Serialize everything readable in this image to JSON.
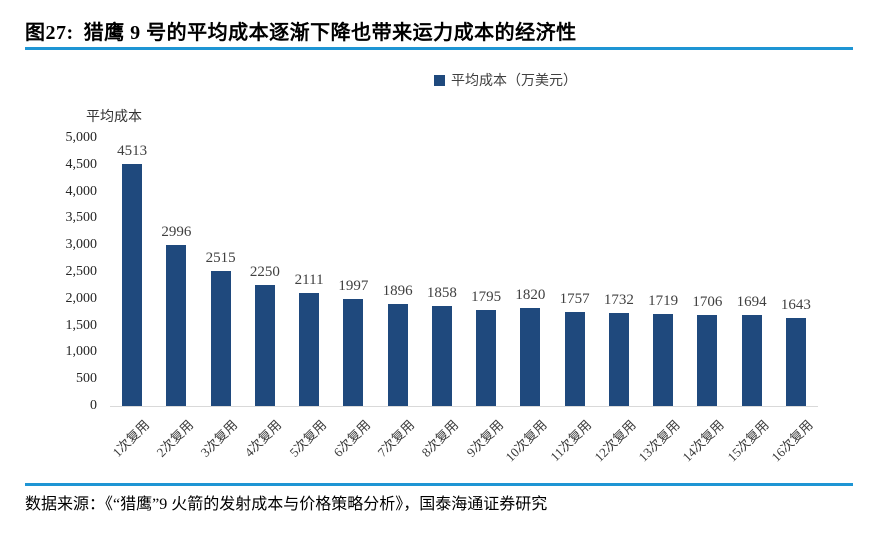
{
  "header": {
    "prefix": "图27:",
    "title": "猎鹰 9 号的平均成本逐渐下降也带来运力成本的经济性"
  },
  "chart_data": {
    "type": "bar",
    "title": "猎鹰 9 号的平均成本逐渐下降也带来运力成本的经济性",
    "legend": "平均成本（万美元）",
    "ylabel": "平均成本",
    "xlabel": "",
    "categories": [
      "1次复用",
      "2次复用",
      "3次复用",
      "4次复用",
      "5次复用",
      "6次复用",
      "7次复用",
      "8次复用",
      "9次复用",
      "10次复用",
      "11次复用",
      "12次复用",
      "13次复用",
      "14次复用",
      "15次复用",
      "16次复用"
    ],
    "values": [
      4513,
      2996,
      2515,
      2250,
      2111,
      1997,
      1896,
      1858,
      1795,
      1820,
      1757,
      1732,
      1719,
      1706,
      1694,
      1643
    ],
    "ylim": [
      0,
      5000
    ],
    "yticks": [
      "5,000",
      "4,500",
      "4,000",
      "3,500",
      "3,000",
      "2,500",
      "2,000",
      "1,500",
      "1,000",
      "500",
      "0"
    ],
    "grid": "off",
    "legend_position": "top-center"
  },
  "footer": {
    "source": "数据来源：《“猎鹰”9 火箭的发射成本与价格策略分析》，国泰海通证券研究"
  },
  "colors": {
    "bar": "#1F497D",
    "rule": "#1E95D4",
    "axis_line": "#D9D9D9",
    "label_text": "#404040"
  }
}
